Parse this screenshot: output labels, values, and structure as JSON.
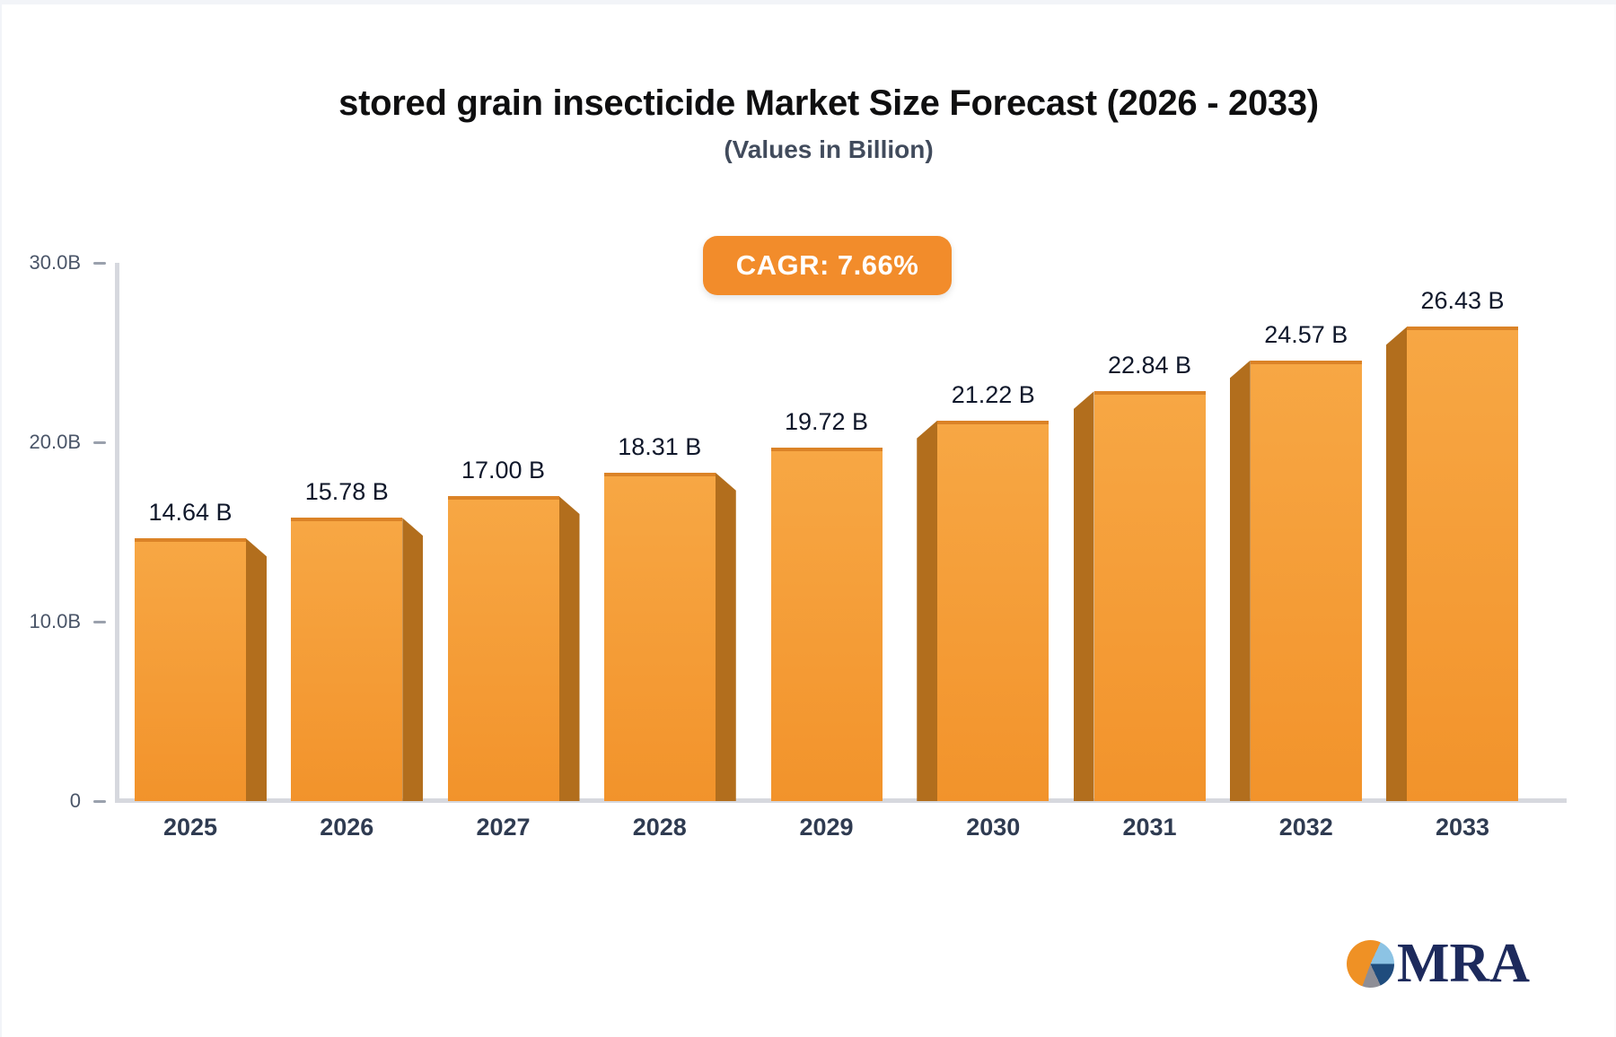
{
  "header": {
    "title": "stored grain insecticide Market Size Forecast (2026 - 2033)",
    "subtitle": "(Values in Billion)"
  },
  "badge": {
    "label": "CAGR: 7.66%"
  },
  "logo": {
    "text": "MRA",
    "pie_colors": {
      "orange": "#ef9125",
      "light_blue": "#8cc3e4",
      "dark_blue": "#1f4c7d",
      "gray": "#8e8e96"
    }
  },
  "colors": {
    "accent_orange": "#f28c2b",
    "bar_top": "#f7a744",
    "bar_bottom": "#f2932b",
    "bar_border": "#db8327",
    "bar_side": "#b26e1d",
    "axis_gray": "#d6d8de",
    "navy_text": "#1d2a5c"
  },
  "chart_data": {
    "type": "bar",
    "title": "stored grain insecticide Market Size Forecast (2026 - 2033)",
    "subtitle": "(Values in Billion)",
    "xlabel": "",
    "ylabel": "",
    "categories": [
      "2025",
      "2026",
      "2027",
      "2028",
      "2029",
      "2030",
      "2031",
      "2032",
      "2033"
    ],
    "values": [
      14.64,
      15.78,
      17.0,
      18.31,
      19.72,
      21.22,
      22.84,
      24.57,
      26.43
    ],
    "value_labels": [
      "14.64 B",
      "15.78 B",
      "17.00 B",
      "18.31 B",
      "19.72 B",
      "21.22 B",
      "22.84 B",
      "24.57 B",
      "26.43 B"
    ],
    "y_ticks": [
      {
        "label": "30.0B",
        "value": 30
      },
      {
        "label": "20.0B",
        "value": 20
      },
      {
        "label": "10.0B",
        "value": 10
      },
      {
        "label": "0",
        "value": 0
      }
    ],
    "ylim": [
      0,
      30
    ],
    "grid": false,
    "legend": false,
    "unit": "Billion",
    "cagr": "7.66%"
  }
}
